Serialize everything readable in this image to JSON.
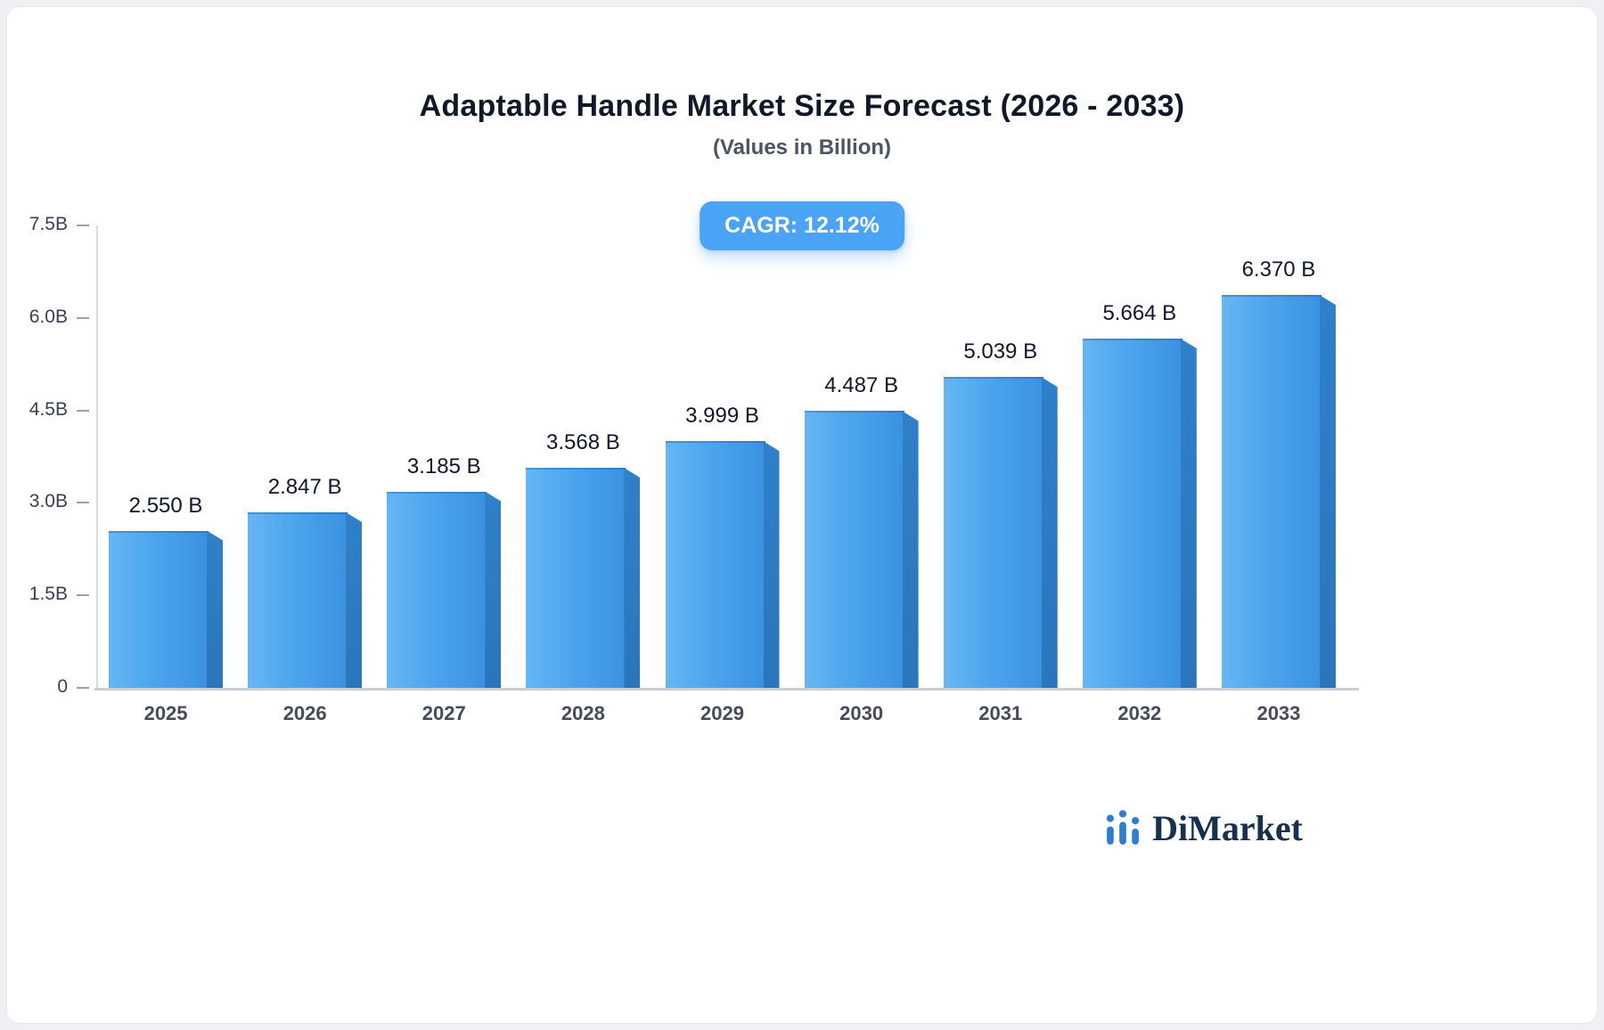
{
  "chart_data": {
    "type": "bar",
    "title": "Adaptable Handle Market Size Forecast (2026 - 2033)",
    "subtitle": "(Values in Billion)",
    "cagr_badge": "CAGR: 12.12%",
    "categories": [
      "2025",
      "2026",
      "2027",
      "2028",
      "2029",
      "2030",
      "2031",
      "2032",
      "2033"
    ],
    "values": [
      2.55,
      2.847,
      3.185,
      3.568,
      3.999,
      4.487,
      5.039,
      5.664,
      6.37
    ],
    "value_labels": [
      "2.550 B",
      "2.847 B",
      "3.185 B",
      "3.568 B",
      "3.999 B",
      "4.487 B",
      "5.039 B",
      "5.664 B",
      "6.370 B"
    ],
    "xlabel": "",
    "ylabel": "",
    "ylim": [
      0,
      7.5
    ],
    "yticks": [
      {
        "value": 7.5,
        "label": "7.5B"
      },
      {
        "value": 6.0,
        "label": "6.0B"
      },
      {
        "value": 4.5,
        "label": "4.5B"
      },
      {
        "value": 3.0,
        "label": "3.0B"
      },
      {
        "value": 1.5,
        "label": "1.5B"
      },
      {
        "value": 0,
        "label": "0"
      }
    ],
    "grid": "off",
    "legend": "none",
    "colors": {
      "bar_face": "#4da5ee",
      "bar_face_light": "#66b6f3",
      "bar_side": "#2a76bd",
      "badge_bg": "#4aa3f5",
      "badge_text": "#ffffff",
      "axis": "#c9ced5"
    }
  },
  "branding": {
    "logo_text": "DiMarket",
    "logo_icon": "bar-chart-logo-icon",
    "logo_text_color": "#18304f",
    "logo_icon_color": "#2d7dd2"
  }
}
